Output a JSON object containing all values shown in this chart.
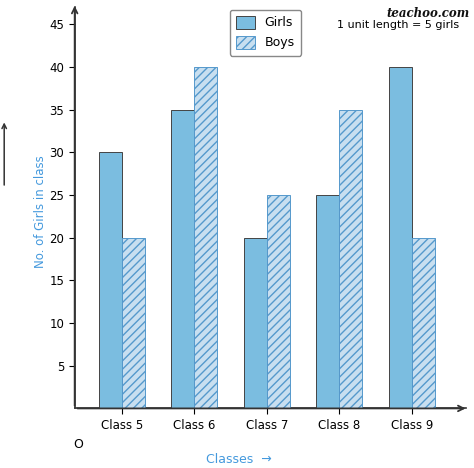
{
  "categories": [
    "Class 5",
    "Class 6",
    "Class 7",
    "Class 8",
    "Class 9"
  ],
  "girls_values": [
    30,
    35,
    20,
    25,
    40
  ],
  "boys_values": [
    20,
    40,
    25,
    35,
    20
  ],
  "bar_color_girls": "#7bbde0",
  "bar_color_boys_face": "#c8dff0",
  "bar_color_boys_hatch": "#5599cc",
  "hatch_boys": "////",
  "ylabel": "No. of Girls in class",
  "xlabel_label": "Classes",
  "ylim": [
    0,
    47
  ],
  "yticks": [
    5,
    10,
    15,
    20,
    25,
    30,
    35,
    40,
    45
  ],
  "origin_label": "O",
  "unit_text": "1 unit length = 5 girls",
  "watermark": "teachoo.com",
  "bar_width": 0.32,
  "ylabel_color": "#4499dd",
  "xlabel_color": "#4499dd",
  "background_color": "#ffffff",
  "edge_color": "#444444",
  "spine_color": "#333333"
}
